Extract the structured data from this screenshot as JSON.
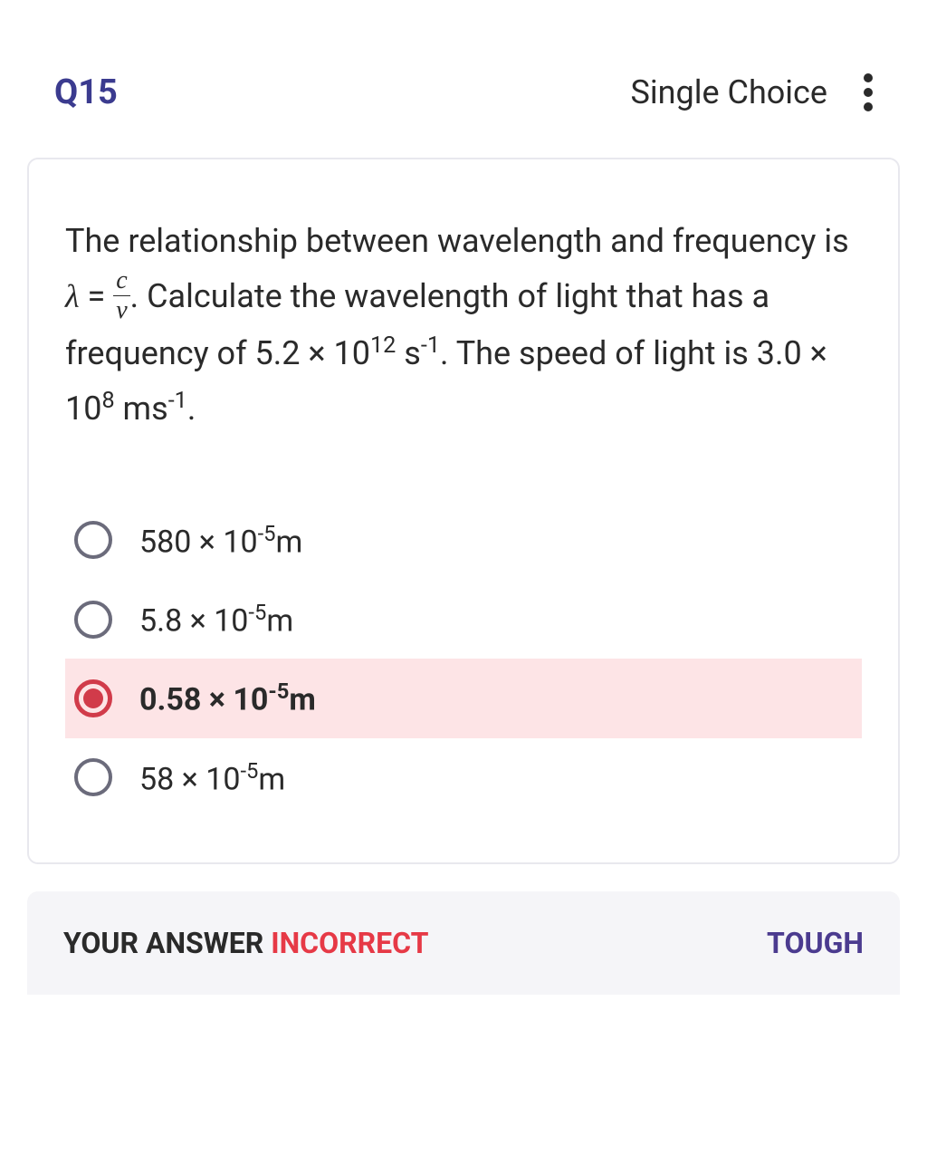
{
  "header": {
    "question_number": "Q15",
    "question_type": "Single Choice"
  },
  "question": {
    "text_parts": {
      "p1": "The relationship between wavelength and frequency is ",
      "lambda": "λ",
      "eq": " = ",
      "frac_num": "c",
      "frac_den": "v",
      "p2": ". Calculate the wavelength of light that has a frequency of 5.2 × 10",
      "exp1": "12",
      "p3": " s",
      "exp2": "-1",
      "p4": ". The speed of light is 3.0 × 10",
      "exp3": "8",
      "p5": " ms",
      "exp4": "-1",
      "p6": "."
    }
  },
  "options": [
    {
      "prefix": "580 × 10",
      "exp": "-5",
      "suffix": "m",
      "selected": false
    },
    {
      "prefix": "5.8 × 10",
      "exp": "-5",
      "suffix": "m",
      "selected": false
    },
    {
      "prefix": "0.58 × 10",
      "exp": "-5",
      "suffix": "m",
      "selected": true
    },
    {
      "prefix": "58 × 10",
      "exp": "-5",
      "suffix": "m",
      "selected": false
    }
  ],
  "footer": {
    "answer_prefix": "YOUR ANSWER ",
    "answer_result": "INCORRECT",
    "difficulty": "TOUGH"
  },
  "colors": {
    "primary_text": "#2a2a2a",
    "question_number": "#3b3b8f",
    "selected_bg": "#fde4e6",
    "selected_radio": "#d13b4a",
    "incorrect": "#e63946",
    "difficulty": "#4b3b8f",
    "card_border": "#e8e8ee",
    "footer_bg": "#f5f5f8",
    "radio_border": "#6b6b7b"
  }
}
